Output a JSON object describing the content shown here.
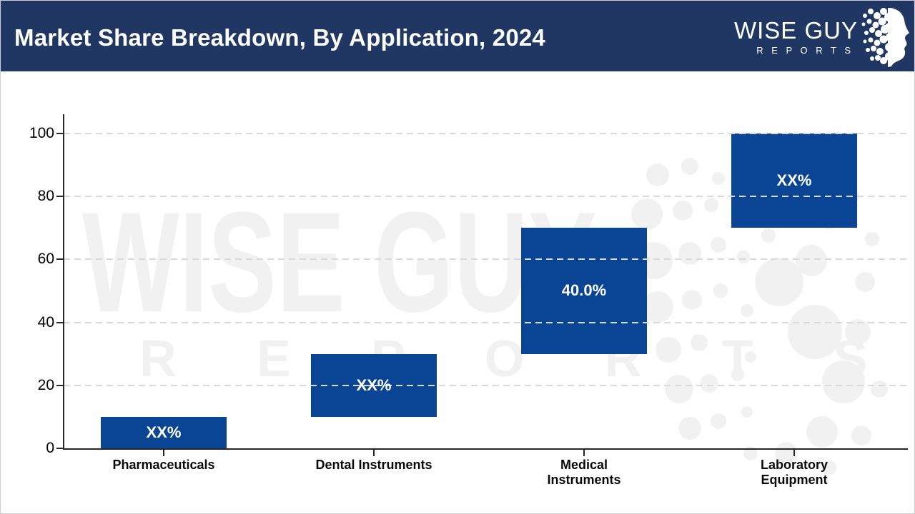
{
  "header": {
    "title": "Market Share Breakdown, By Application, 2024",
    "logo": {
      "name": "WISE GUY",
      "tagline": "R E P O R T S"
    }
  },
  "watermark": {
    "title": "WISE GUY",
    "subtitle": "R E P O R T S"
  },
  "chart_data": {
    "type": "bar",
    "subtype": "floating-segment-waterfall",
    "title": "Market Share Breakdown, By Application, 2024",
    "categories": [
      "Pharmaceuticals",
      "Dental Instruments",
      "Medical Instruments",
      "Laboratory Equipment"
    ],
    "categories_display": [
      [
        "Pharmaceuticals"
      ],
      [
        "Dental Instruments"
      ],
      [
        "Medical",
        "Instruments"
      ],
      [
        "Laboratory",
        "Equipment"
      ]
    ],
    "segments": [
      {
        "category": "Pharmaceuticals",
        "start": 0,
        "end": 10,
        "label": "XX%"
      },
      {
        "category": "Dental Instruments",
        "start": 10,
        "end": 30,
        "label": "XX%"
      },
      {
        "category": "Medical Instruments",
        "start": 30,
        "end": 70,
        "label": "40.0%"
      },
      {
        "category": "Laboratory Equipment",
        "start": 70,
        "end": 100,
        "label": "XX%"
      }
    ],
    "ylim": [
      0,
      100
    ],
    "yticks": [
      0,
      20,
      40,
      60,
      80,
      100
    ],
    "xlabel": "",
    "ylabel": "",
    "grid": "horizontal-dashed",
    "legend": "none",
    "bar_color": "#0a4494",
    "bar_label_color": "#ffffff"
  },
  "colors": {
    "header_bg": "#203764",
    "bar": "#0a4494",
    "grid": "#d9d9d9",
    "axis": "#262626",
    "watermark": "#f1f1f1",
    "page_bg": "#ffffff"
  }
}
